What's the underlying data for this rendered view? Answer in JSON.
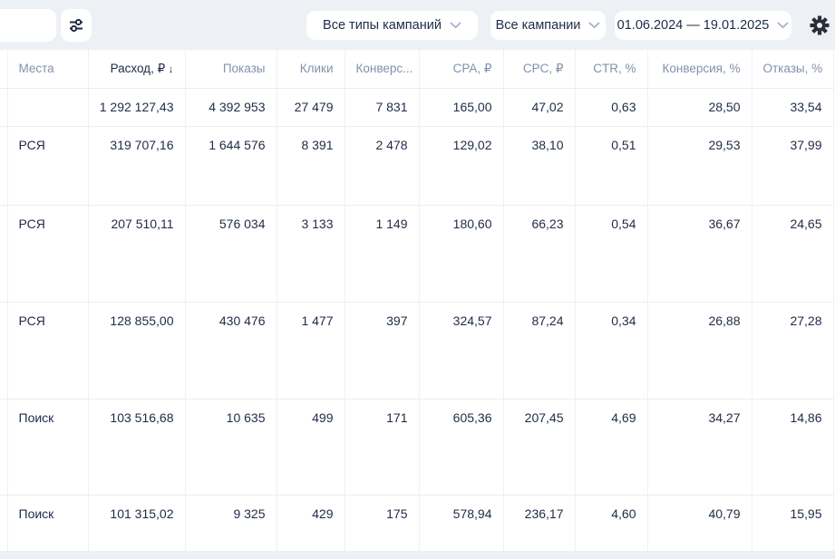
{
  "topbar": {
    "search": {
      "value": "",
      "placeholder": ""
    },
    "filter_button_icon": "sliders-icon",
    "campaign_type_dropdown": {
      "label": "Все типы кампаний",
      "icon": "chevron-down-icon"
    },
    "campaigns_dropdown": {
      "label": "Все кампании",
      "icon": "chevron-down-icon"
    },
    "date_range_dropdown": {
      "label": "01.06.2024 — 19.01.2025",
      "icon": "chevron-down-icon"
    },
    "settings_button_icon": "gear-icon"
  },
  "table": {
    "columns": [
      {
        "id": "mesta",
        "label": "Места",
        "sorted": false,
        "sort": ""
      },
      {
        "id": "rashod",
        "label": "Расход, ₽",
        "sorted": true,
        "sort": "↓"
      },
      {
        "id": "pokazy",
        "label": "Показы",
        "sorted": false,
        "sort": ""
      },
      {
        "id": "kliki",
        "label": "Клики",
        "sorted": false,
        "sort": ""
      },
      {
        "id": "konversii",
        "label": "Конверс...",
        "sorted": false,
        "sort": ""
      },
      {
        "id": "cpa",
        "label": "CPA, ₽",
        "sorted": false,
        "sort": ""
      },
      {
        "id": "cpc",
        "label": "CPC, ₽",
        "sorted": false,
        "sort": ""
      },
      {
        "id": "ctr",
        "label": "CTR, %",
        "sorted": false,
        "sort": ""
      },
      {
        "id": "conversion",
        "label": "Конверсия, %",
        "sorted": false,
        "sort": ""
      },
      {
        "id": "otkazy",
        "label": "Отказы, %",
        "sorted": false,
        "sort": ""
      }
    ],
    "totals_row": [
      "",
      "1 292 127,43",
      "4 392 953",
      "27 479",
      "7 831",
      "165,00",
      "47,02",
      "0,63",
      "28,50",
      "33,54"
    ],
    "rows": [
      {
        "cells": [
          "РСЯ",
          "319 707,16",
          "1 644 576",
          "8 391",
          "2 478",
          "129,02",
          "38,10",
          "0,51",
          "29,53",
          "37,99"
        ]
      },
      {
        "cells": [
          "РСЯ",
          "207 510,11",
          "576 034",
          "3 133",
          "1 149",
          "180,60",
          "66,23",
          "0,54",
          "36,67",
          "24,65"
        ]
      },
      {
        "cells": [
          "РСЯ",
          "128 855,00",
          "430 476",
          "1 477",
          "397",
          "324,57",
          "87,24",
          "0,34",
          "26,88",
          "27,28"
        ]
      },
      {
        "cells": [
          "Поиск",
          "103 516,68",
          "10 635",
          "499",
          "171",
          "605,36",
          "207,45",
          "4,69",
          "34,27",
          "14,86"
        ]
      },
      {
        "cells": [
          "Поиск",
          "101 315,02",
          "9 325",
          "429",
          "175",
          "578,94",
          "236,17",
          "4,60",
          "40,79",
          "15,95"
        ]
      }
    ]
  },
  "colors": {
    "background": "#edf0f5",
    "panel": "#ffffff",
    "text_dark": "#1e2b47",
    "text_muted": "#8291ac",
    "chevron": "#a6b2c8",
    "border": "#e9edf4"
  }
}
